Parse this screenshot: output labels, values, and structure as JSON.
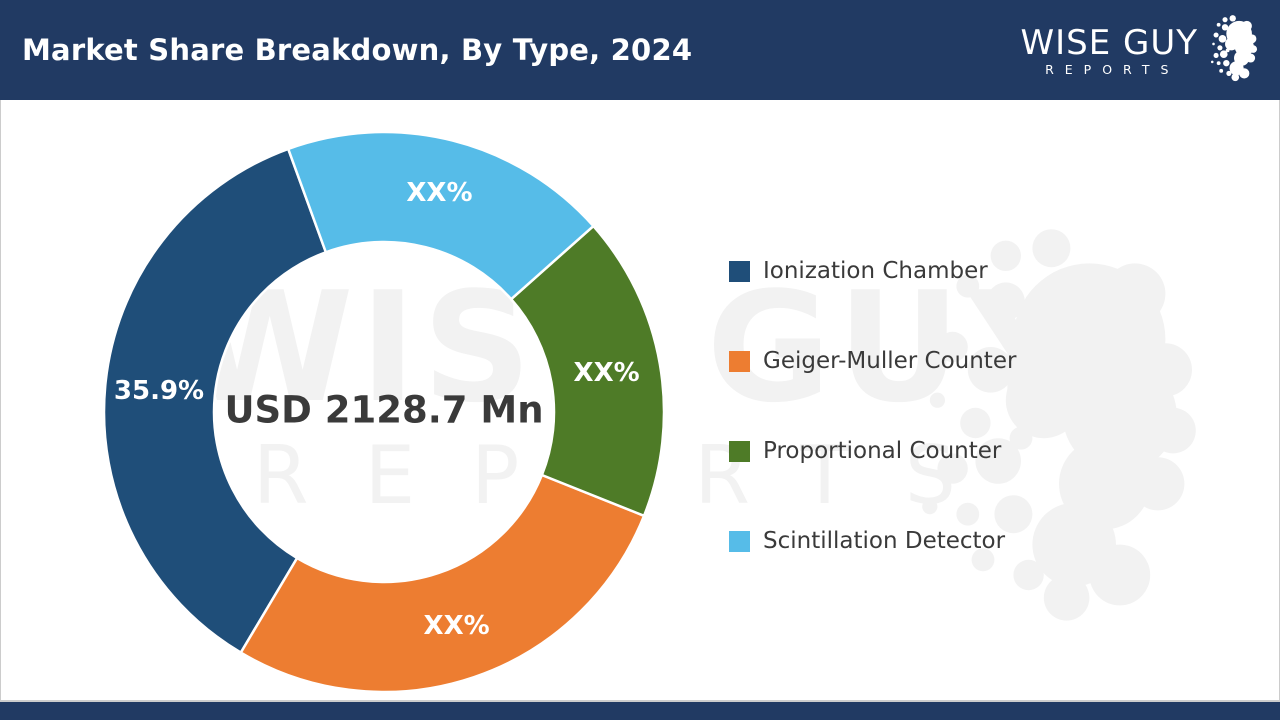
{
  "header": {
    "title": "Market Share Breakdown, By Type, 2024"
  },
  "logo": {
    "line1": "WISE GUY",
    "line2": "REPORTS"
  },
  "watermark": {
    "line1": "WISE GUY",
    "line2": "REPORTS"
  },
  "chart_data": {
    "type": "pie",
    "subtype": "donut",
    "title": "Market Share Breakdown, By Type, 2024",
    "center_label": "USD 2128.7 Mn",
    "start_angle_deg": 110,
    "direction": "counterclockwise",
    "legend_position": "right",
    "slices": [
      {
        "label": "Ionization Chamber",
        "display_value": "35.9%",
        "pct_estimate": 35.9,
        "color": "#1F4E79"
      },
      {
        "label": "Geiger-Muller Counter",
        "display_value": "XX%",
        "pct_estimate": 27.5,
        "color": "#ED7D31"
      },
      {
        "label": "Proportional Counter",
        "display_value": "XX%",
        "pct_estimate": 17.6,
        "color": "#4E7B27"
      },
      {
        "label": "Scintillation Detector",
        "display_value": "XX%",
        "pct_estimate": 19.0,
        "color": "#56BCE8"
      }
    ]
  },
  "colors": {
    "header_bar": "#213A63",
    "footer_bar": "#213A63",
    "slice_label_text": "#FFFFFF",
    "center_text": "#3A3A3A",
    "legend_text": "#3A3A3A",
    "watermark": "#F2F2F2",
    "border": "#CCCCCC"
  }
}
